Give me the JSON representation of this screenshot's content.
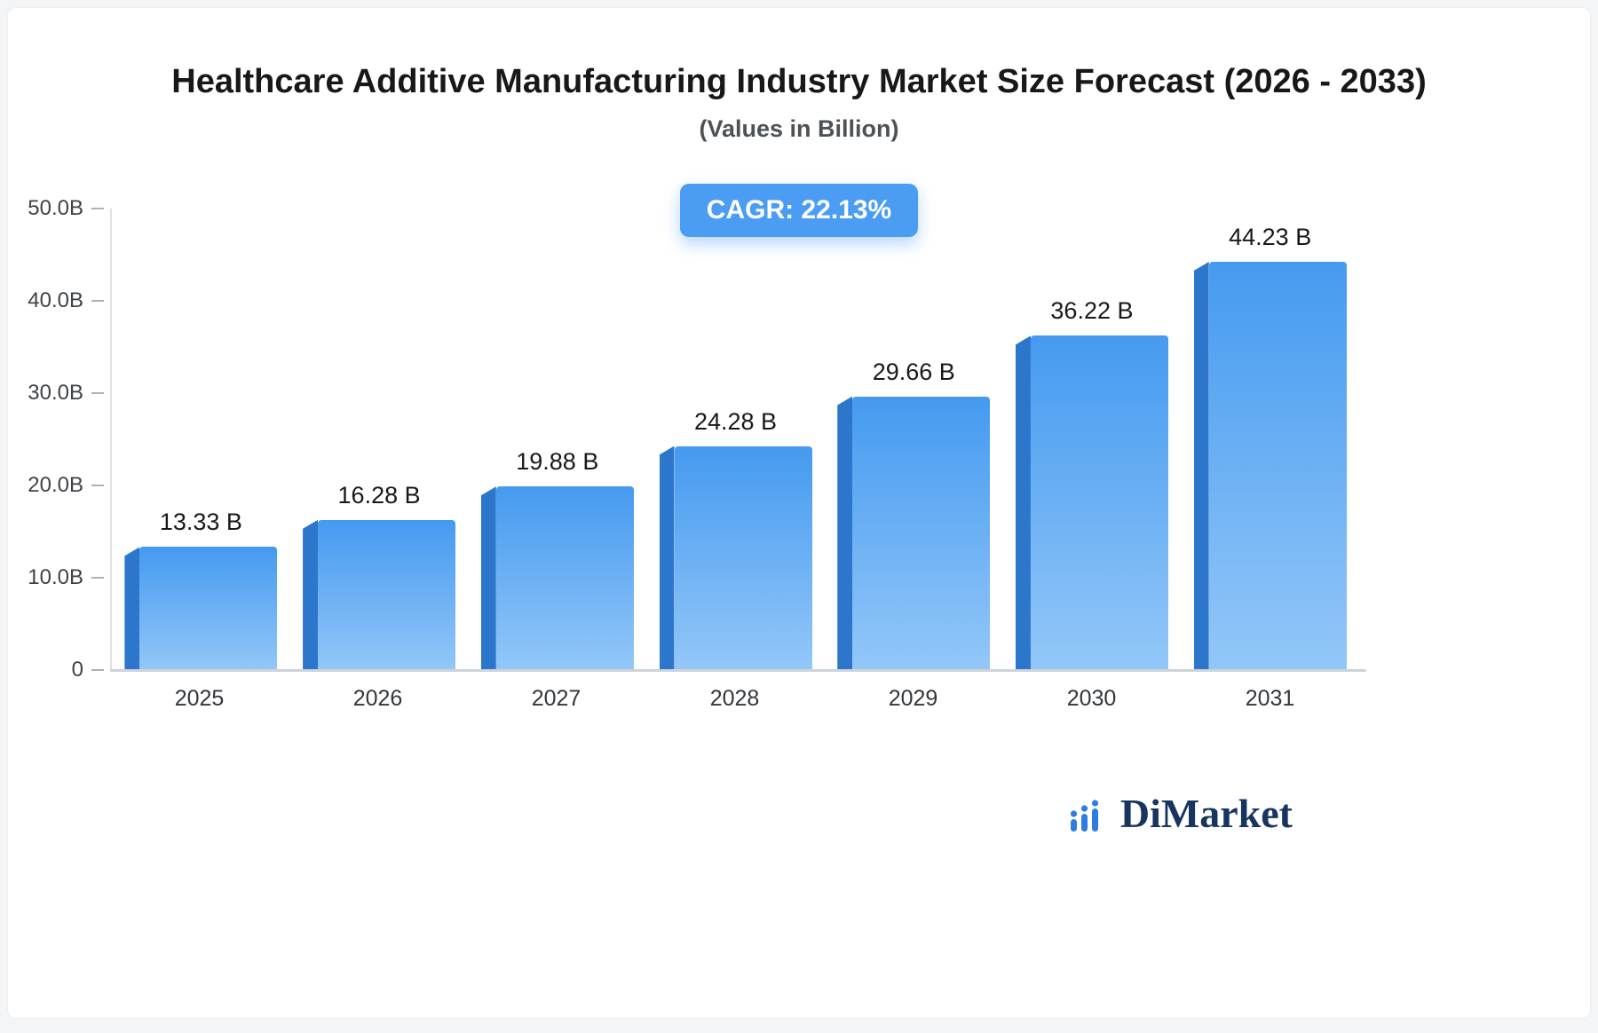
{
  "title": "Healthcare Additive Manufacturing Industry Market Size Forecast (2026 - 2033)",
  "subtitle": "(Values in Billion)",
  "badge": "CAGR: 22.13%",
  "brand": {
    "name": "DiMarket"
  },
  "colors": {
    "accent": "#4A9DF2",
    "bar_top": "#459AF0",
    "bar_bottom": "#93C7F8",
    "bar_side": "#2C77CC",
    "brand_text": "#17355F",
    "brand_icon": "#2E7CE0"
  },
  "chart_data": {
    "type": "bar",
    "categories": [
      "2025",
      "2026",
      "2027",
      "2028",
      "2029",
      "2030",
      "2031"
    ],
    "values": [
      13.33,
      16.28,
      19.88,
      24.28,
      29.66,
      36.22,
      44.23
    ],
    "labels": [
      "13.33 B",
      "16.28 B",
      "19.88 B",
      "24.28 B",
      "29.66 B",
      "36.22 B",
      "44.23 B"
    ],
    "title": "Healthcare Additive Manufacturing Industry Market Size Forecast (2026 - 2033)",
    "subtitle": "(Values in Billion)",
    "xlabel": "",
    "ylabel": "",
    "ylim": [
      0,
      50
    ],
    "yticks": [
      "50.0B",
      "40.0B",
      "30.0B",
      "20.0B",
      "10.0B",
      "0"
    ],
    "grid": false,
    "legend": false
  }
}
